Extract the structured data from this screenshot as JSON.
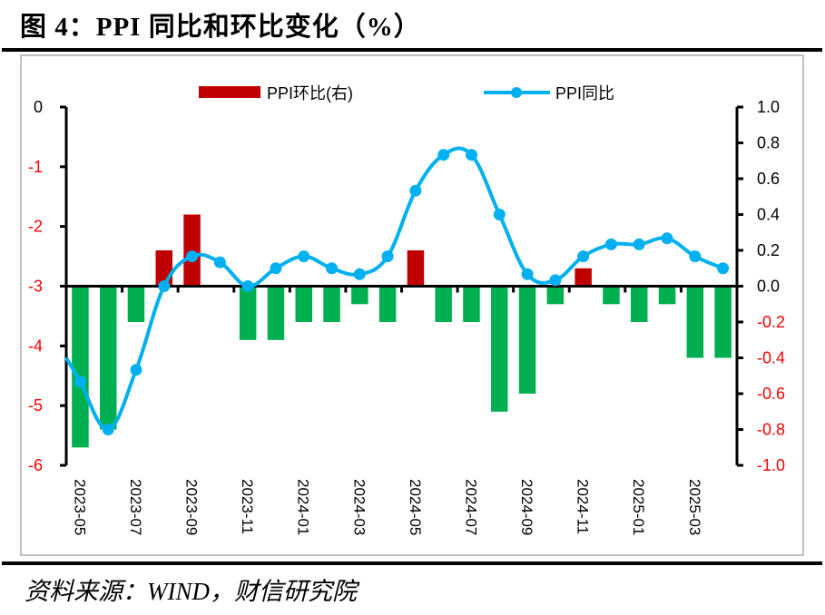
{
  "title": "图 4：PPI 同比和环比变化（%）",
  "source": "资料来源：WIND，财信研究院",
  "colors": {
    "yoy_line": "#00B0F0",
    "mom_positive": "#C00000",
    "mom_negative": "#00B050",
    "negative_tick": "#FF0000",
    "positive_tick": "#000000"
  },
  "chart_data": {
    "type": "bar+line",
    "title": "PPI 同比和环比变化（%）",
    "categories": [
      "2023-05",
      "2023-06",
      "2023-07",
      "2023-08",
      "2023-09",
      "2023-10",
      "2023-11",
      "2023-12",
      "2024-01",
      "2024-02",
      "2024-03",
      "2024-04",
      "2024-05",
      "2024-06",
      "2024-07",
      "2024-08",
      "2024-09",
      "2024-10",
      "2024-11",
      "2024-12",
      "2025-01",
      "2025-02",
      "2025-03",
      "2025-04"
    ],
    "x_tick_labels": [
      "2023-05",
      "2023-07",
      "2023-09",
      "2023-11",
      "2024-01",
      "2024-03",
      "2024-05",
      "2024-07",
      "2024-09",
      "2024-11",
      "2025-01",
      "2025-03"
    ],
    "series": [
      {
        "name": "PPI环比(右)",
        "type": "bar",
        "axis": "right",
        "values": [
          -0.9,
          -0.8,
          -0.2,
          0.2,
          0.4,
          0.0,
          -0.3,
          -0.3,
          -0.2,
          -0.2,
          -0.1,
          -0.2,
          0.2,
          -0.2,
          -0.2,
          -0.7,
          -0.6,
          -0.1,
          0.1,
          -0.1,
          -0.2,
          -0.1,
          -0.4,
          -0.4
        ]
      },
      {
        "name": "PPI同比",
        "type": "line",
        "axis": "left",
        "marker": "circle",
        "values": [
          -4.6,
          -5.4,
          -4.4,
          -3.0,
          -2.5,
          -2.6,
          -3.0,
          -2.7,
          -2.5,
          -2.7,
          -2.8,
          -2.5,
          -1.4,
          -0.8,
          -0.8,
          -1.8,
          -2.8,
          -2.9,
          -2.5,
          -2.3,
          -2.3,
          -2.2,
          -2.5,
          -2.7
        ]
      }
    ],
    "y_left": {
      "range": [
        -6,
        0
      ],
      "ticks": [
        "0",
        "-1",
        "-2",
        "-3",
        "-4",
        "-5",
        "-6"
      ],
      "values": [
        0,
        -1,
        -2,
        -3,
        -4,
        -5,
        -6
      ]
    },
    "y_right": {
      "range": [
        -1.0,
        1.0
      ],
      "ticks": [
        "1.0",
        "0.8",
        "0.6",
        "0.4",
        "0.2",
        "0.0",
        "-0.2",
        "-0.4",
        "-0.6",
        "-0.8",
        "-1.0"
      ],
      "values": [
        1.0,
        0.8,
        0.6,
        0.4,
        0.2,
        0.0,
        -0.2,
        -0.4,
        -0.6,
        -0.8,
        -1.0
      ]
    },
    "legend": {
      "placement": "top",
      "entries": [
        "PPI环比(右)",
        "PPI同比"
      ]
    },
    "grid": false,
    "xlabel": "",
    "ylabel": ""
  }
}
